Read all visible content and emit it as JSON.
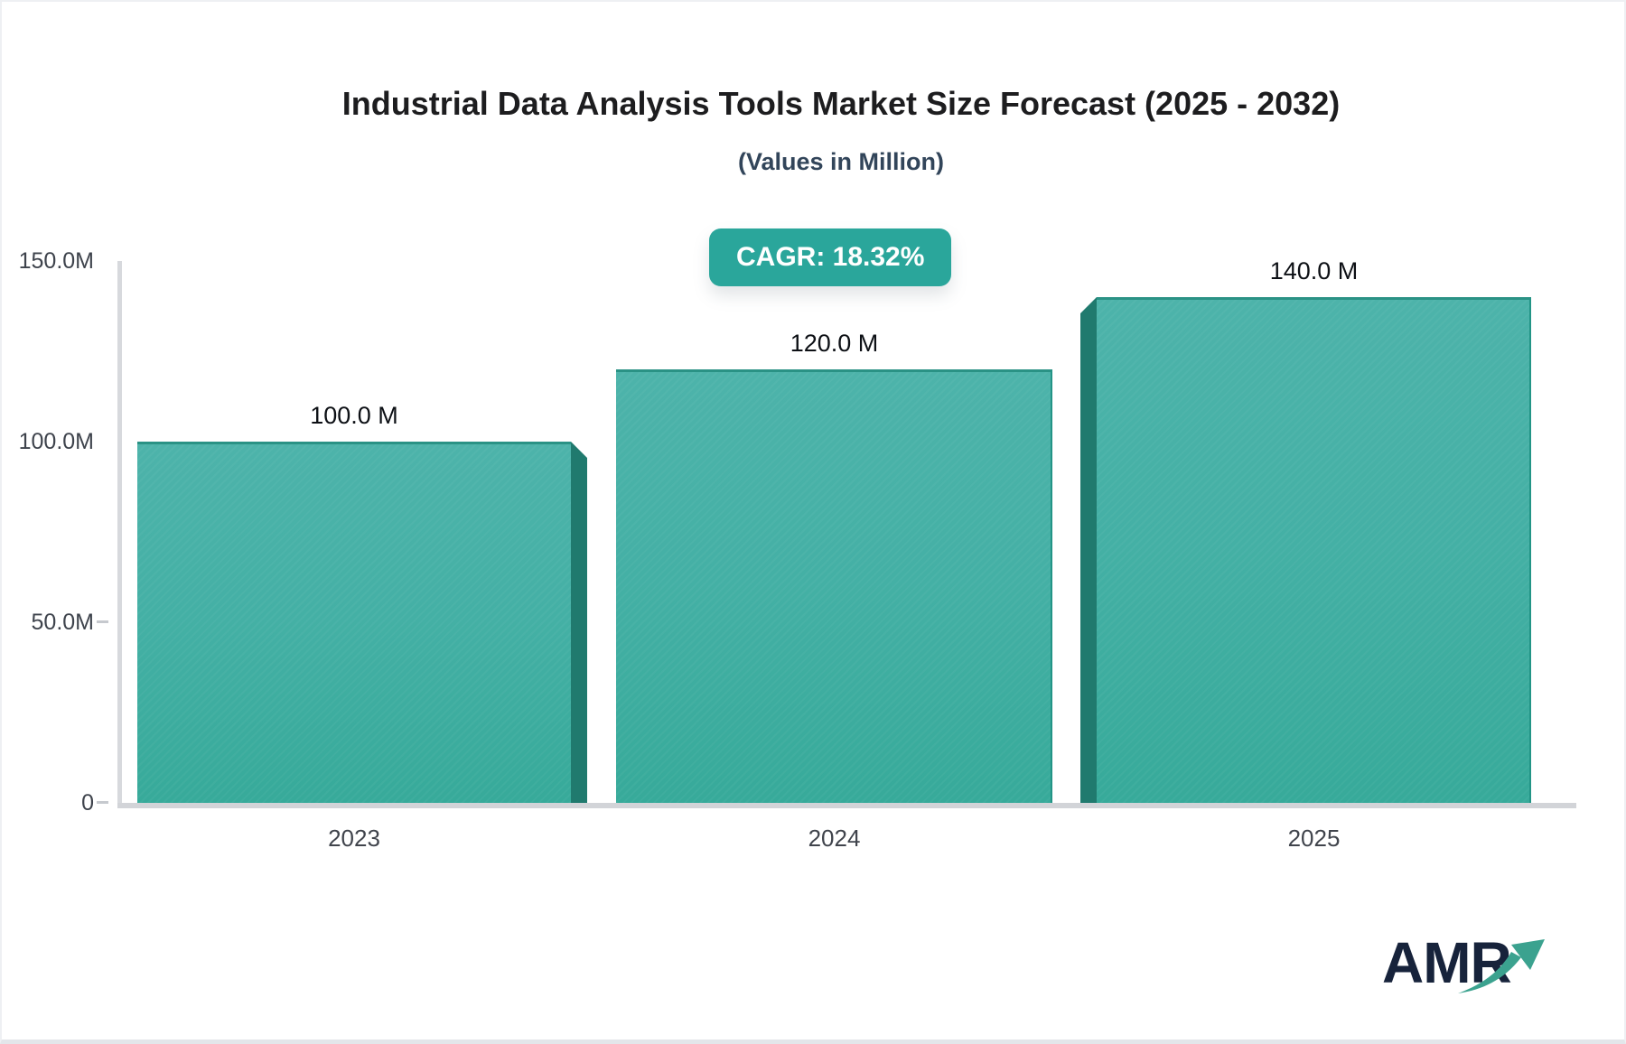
{
  "header": {
    "title": "Industrial Data Analysis Tools Market Size Forecast (2025 - 2032)",
    "subtitle": "(Values in Million)"
  },
  "badge": {
    "label": "CAGR: 18.32%",
    "bg_color": "#2aa69b",
    "text_color": "#ffffff"
  },
  "chart_data": {
    "type": "bar",
    "title": "Industrial Data Analysis Tools Market Size Forecast (2025 - 2032)",
    "subtitle": "(Values in Million)",
    "unit": "Million",
    "cagr": "18.32%",
    "categories": [
      "2023",
      "2024",
      "2025"
    ],
    "values": [
      100,
      120,
      140
    ],
    "value_labels": [
      "100.0 M",
      "120.0 M",
      "140.0 M"
    ],
    "ylim": [
      0,
      150
    ],
    "y_ticks": [
      {
        "label": "150.0M",
        "value": 150,
        "dash": false
      },
      {
        "label": "100.0M",
        "value": 100,
        "dash": false
      },
      {
        "label": "50.0M",
        "value": 50,
        "dash": true
      },
      {
        "label": "0",
        "value": 0,
        "dash": true
      }
    ],
    "grid": false,
    "legend": false,
    "bar_color_top": "#4db3aa",
    "bar_color_bottom": "#37aa9a",
    "bar_side_color": "#207a6e",
    "bar_top_border_color": "#2a9285",
    "axis_color": "#d2d4d8"
  },
  "logo": {
    "text": "AMR",
    "text_color": "#17233b",
    "arrow_color": "#3ba28f"
  }
}
